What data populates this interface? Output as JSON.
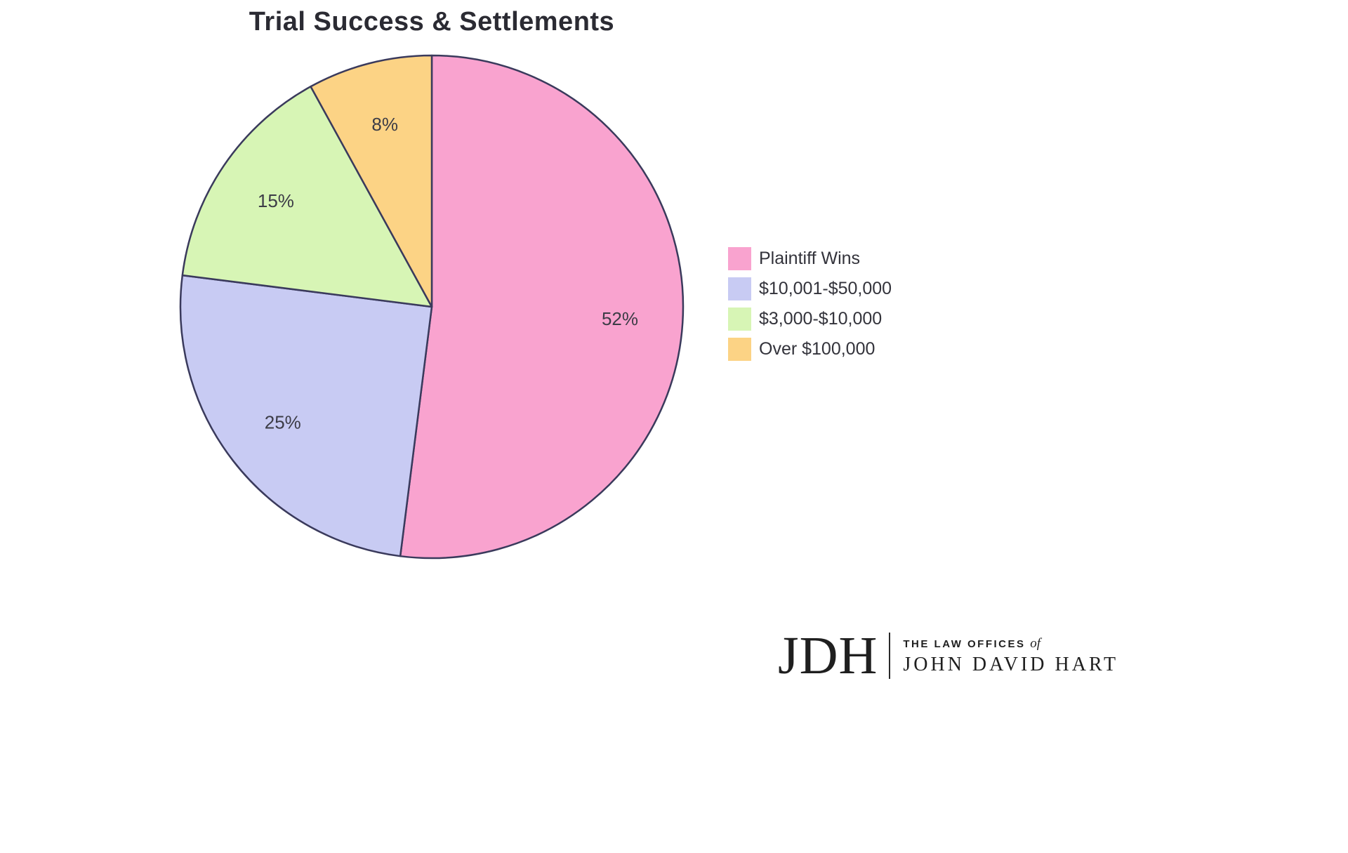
{
  "chart_data": {
    "type": "pie",
    "title": "Trial Success & Settlements",
    "labels": [
      "Plaintiff Wins",
      "$10,001-$50,000",
      "$3,000-$10,000",
      "Over $100,000"
    ],
    "values": [
      52,
      25,
      15,
      8
    ],
    "percent_labels": [
      "52%",
      "25%",
      "15%",
      "8%"
    ],
    "colors": [
      "#F9A3CF",
      "#C8CBF3",
      "#D7F5B5",
      "#FCD385"
    ],
    "stroke_color": "#3A3A5C",
    "start_angle_deg": 0,
    "direction": "clockwise",
    "legend_position": "right"
  },
  "logo": {
    "monogram": "JDH",
    "tagline_prefix": "THE LAW OFFICES",
    "tagline_of": "of",
    "name": "JOHN DAVID HART"
  }
}
